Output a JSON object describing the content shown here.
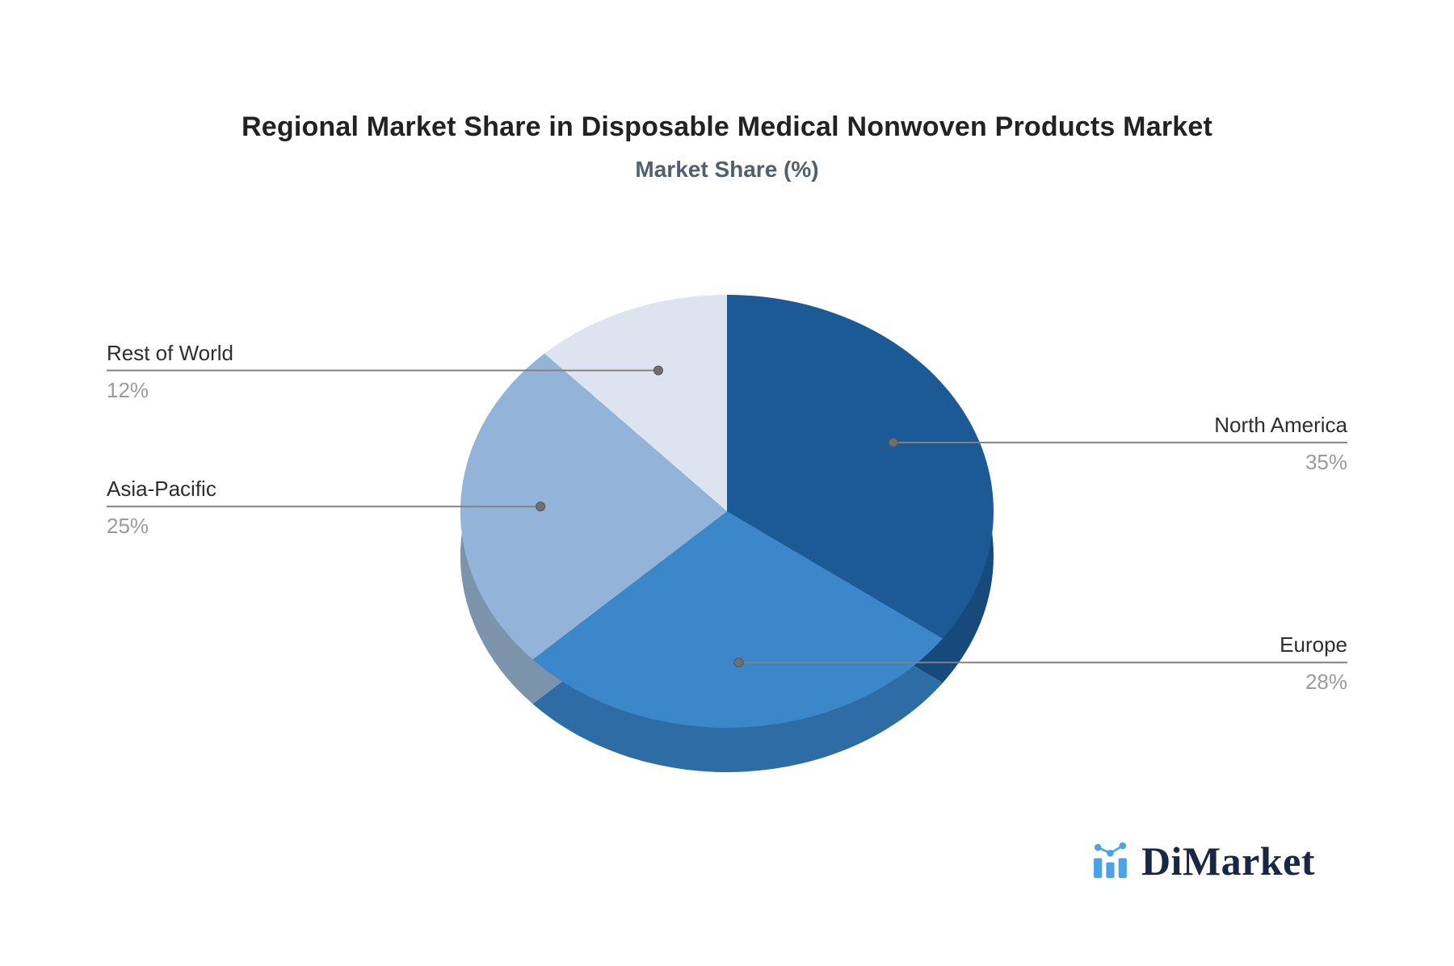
{
  "header": {
    "title": "Regional Market Share in Disposable Medical Nonwoven Products Market",
    "subtitle": "Market Share (%)"
  },
  "chart_data": {
    "type": "pie",
    "title": "Regional Market Share in Disposable Medical Nonwoven Products Market",
    "subtitle": "Market Share (%)",
    "unit": "%",
    "effect": "3d",
    "start_angle_deg": 0,
    "direction": "clockwise",
    "legend_position": "callout-labels",
    "slices": [
      {
        "label": "North America",
        "value": 35,
        "display": "35%",
        "color": "#1c5a95",
        "side_color": "#16497c",
        "callout_side": "right"
      },
      {
        "label": "Europe",
        "value": 28,
        "display": "28%",
        "color": "#3b87ca",
        "side_color": "#2d6ca5",
        "callout_side": "right"
      },
      {
        "label": "Asia-Pacific",
        "value": 25,
        "display": "25%",
        "color": "#93b4d8",
        "side_color": "#7b93ab",
        "callout_side": "left"
      },
      {
        "label": "Rest of World",
        "value": 12,
        "display": "12%",
        "color": "#dee4ef",
        "side_color": "#b9c3d6",
        "callout_side": "left"
      }
    ],
    "callout_line_color": "#828282",
    "callout_dot_color": "#707070",
    "label_color": "#2e2e2e",
    "value_color": "#9b9b9b"
  },
  "branding": {
    "logo_text": "DiMarket",
    "logo_icon": "bar-line-chart-icon",
    "logo_icon_color": "#4aa3e8",
    "logo_text_color": "#182844"
  }
}
